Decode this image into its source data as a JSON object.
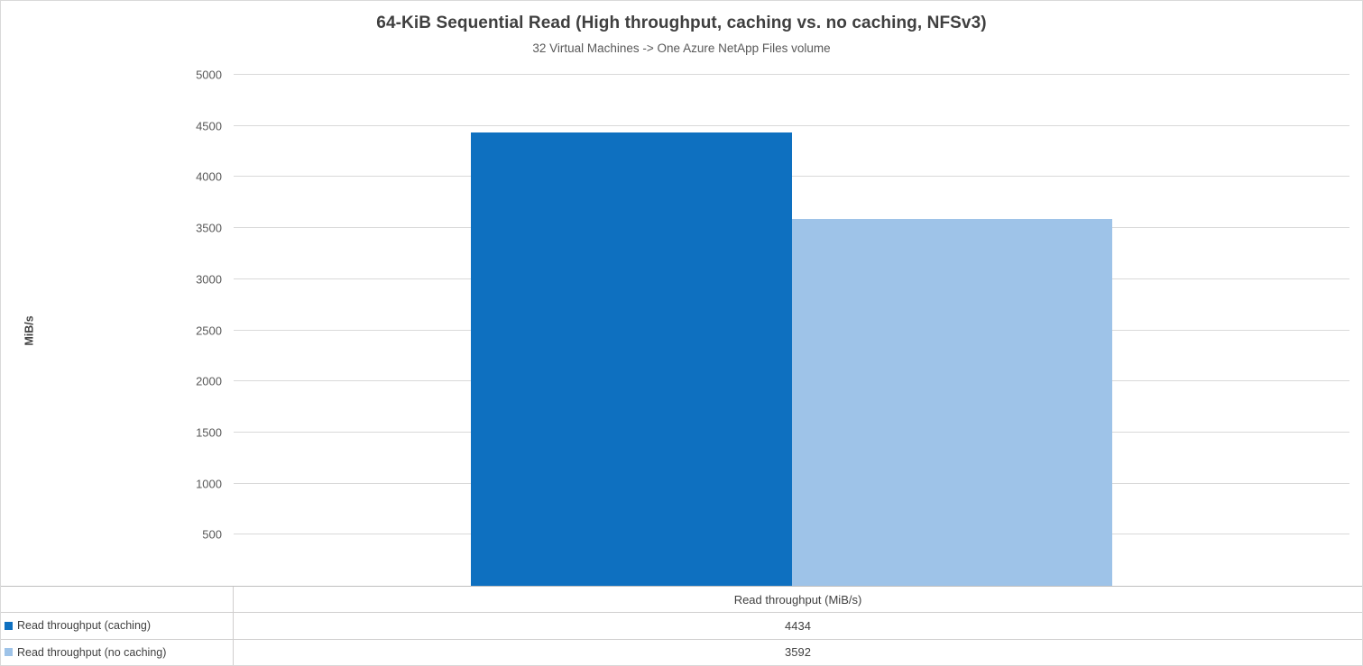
{
  "chart_data": {
    "type": "bar",
    "title": "64-KiB Sequential Read (High throughput, caching vs. no caching, NFSv3)",
    "subtitle": "32 Virtual Machines -> One Azure NetApp Files volume",
    "ylabel": "MiB/s",
    "xlabel": "",
    "categories": [
      "Read throughput (MiB/s)"
    ],
    "series": [
      {
        "name": "Read throughput (caching)",
        "values": [
          4434
        ],
        "color": "#0e70c0"
      },
      {
        "name": "Read throughput (no caching)",
        "values": [
          3592
        ],
        "color": "#9ec3e8"
      }
    ],
    "ylim": [
      0,
      5000
    ],
    "y_ticks": [
      500,
      1000,
      1500,
      2000,
      2500,
      3000,
      3500,
      4000,
      4500,
      5000
    ],
    "grid": true,
    "legend_position": "table-bottom",
    "colors": {
      "gridline": "#d9d9d9",
      "table_border": "#d0cece",
      "text": "#404040",
      "tick_text": "#595959"
    }
  },
  "table": {
    "header": "Read throughput (MiB/s)",
    "rows": [
      {
        "label": "Read throughput (caching)",
        "value": "4434"
      },
      {
        "label": "Read throughput (no caching)",
        "value": "3592"
      }
    ]
  }
}
